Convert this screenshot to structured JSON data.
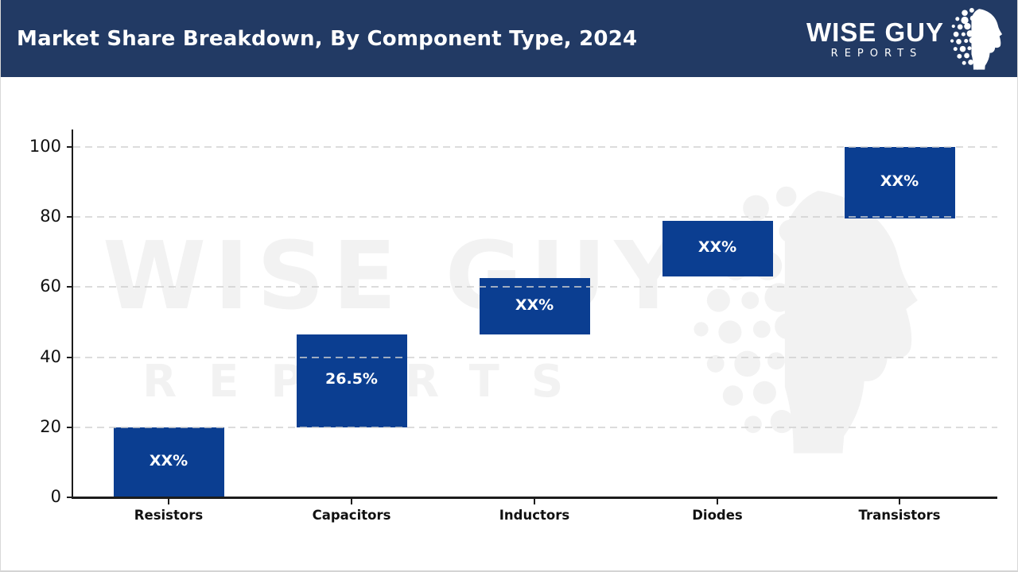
{
  "header": {
    "title": "Market Share Breakdown, By Component Type, 2024",
    "logo": {
      "line1": "WISE GUY",
      "line2": "REPORTS"
    }
  },
  "watermark": {
    "line1": "WISE GUY",
    "line2": "REPORTS"
  },
  "colors": {
    "header_bg": "#223A64",
    "bar": "#0B3E91",
    "bar_label_text": "#FFFFFF",
    "axis": "#1C1C1C",
    "grid": "#DCDCDC",
    "watermark": "#F2F2F2",
    "title_text": "#FFFFFF"
  },
  "icons": {
    "logo_head": "dotted-head-profile"
  },
  "chart_data": {
    "type": "bar",
    "subtype": "waterfall",
    "title": "Market Share Breakdown, By Component Type, 2024",
    "categories": [
      "Resistors",
      "Capacitors",
      "Inductors",
      "Diodes",
      "Transistors"
    ],
    "segments": [
      {
        "category": "Resistors",
        "start": 0,
        "end": 20,
        "label": "XX%"
      },
      {
        "category": "Capacitors",
        "start": 20,
        "end": 46.5,
        "label": "26.5%"
      },
      {
        "category": "Inductors",
        "start": 46.5,
        "end": 62.5,
        "label": "XX%"
      },
      {
        "category": "Diodes",
        "start": 63,
        "end": 79,
        "label": "XX%"
      },
      {
        "category": "Transistors",
        "start": 79.5,
        "end": 100,
        "label": "XX%"
      }
    ],
    "yticks": [
      0,
      20,
      40,
      60,
      80,
      100
    ],
    "ylim": [
      0,
      105
    ],
    "xlabel": "",
    "ylabel": "",
    "grid": "dashed-horizontal",
    "legend": "none"
  }
}
